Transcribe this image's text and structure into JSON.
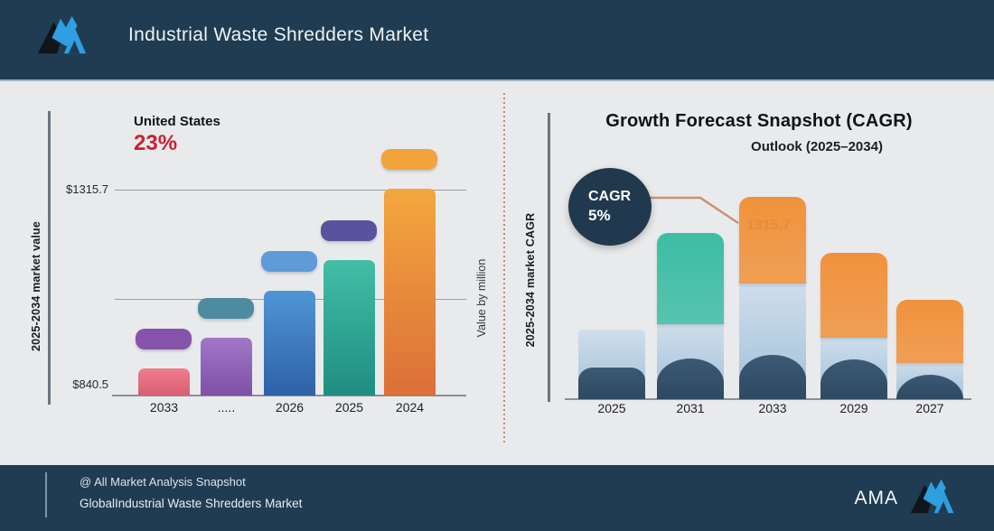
{
  "header": {
    "title": "Industrial Waste Shredders Market",
    "brand": "AMA"
  },
  "footer": {
    "line1": "@ All Market Analysis Snapshot",
    "line2": "GlobalIndustrial Waste Shredders Market",
    "brand": "AMA"
  },
  "colors": {
    "header_bg": "#203c52",
    "canvas_bg": "#e9eaec",
    "accent_red": "#cc202d",
    "badge_bg": "#20394e",
    "connector": "#c89272",
    "logo_blue": "#2e9fe0",
    "logo_black": "#10151a"
  },
  "chart_data": [
    {
      "type": "bar",
      "panel": "left",
      "title": "United States",
      "highlight": "23%",
      "ylabel": "2025-2034 market value",
      "right_axis_label": "Value by million",
      "categories": [
        "2033",
        ".....",
        "2026",
        "2025",
        "2024"
      ],
      "values": [
        903,
        974,
        1082,
        1151,
        1315.7
      ],
      "ylim": [
        840.5,
        1315.7
      ],
      "ytick_labels": [
        "$1315.7",
        "$840.5"
      ],
      "grid": true,
      "legend": "none",
      "bar_gradients": [
        [
          "#ee7d8d",
          "#d95e72"
        ],
        [
          "#a277c7",
          "#7e50a8"
        ],
        [
          "#4f96d4",
          "#2e61a6"
        ],
        [
          "#42bea6",
          "#1f8d82"
        ],
        [
          "#f3a73e",
          "#dc6f38"
        ]
      ],
      "cap_colors": [
        "#8653ab",
        "#4d8ba0",
        "#5e9bd8",
        "#57539e",
        "#f2a33c"
      ]
    },
    {
      "type": "stacked-bar",
      "panel": "right",
      "title": "Growth Forecast Snapshot (CAGR)",
      "subtitle": "Outlook (2025–2034)",
      "ylabel": "2025-2034 market CAGR",
      "badge": {
        "label": "CAGR",
        "value": "5%"
      },
      "callout_value": "1315.7",
      "categories": [
        "2025",
        "2031",
        "2033",
        "2029",
        "2027"
      ],
      "series": [
        {
          "name": "base",
          "color": "#3a5872",
          "values": [
            35,
            45,
            49,
            44,
            27
          ]
        },
        {
          "name": "mid",
          "color": "#aac6df",
          "values": [
            42,
            40,
            81,
            26,
            15
          ]
        },
        {
          "name": "top",
          "colors": [
            null,
            "#3dbda4",
            "#f0923b",
            "#f0923b",
            "#f0923b"
          ],
          "values": [
            0,
            99,
            94,
            92,
            68
          ]
        }
      ],
      "legend": "none",
      "grid": false
    }
  ]
}
